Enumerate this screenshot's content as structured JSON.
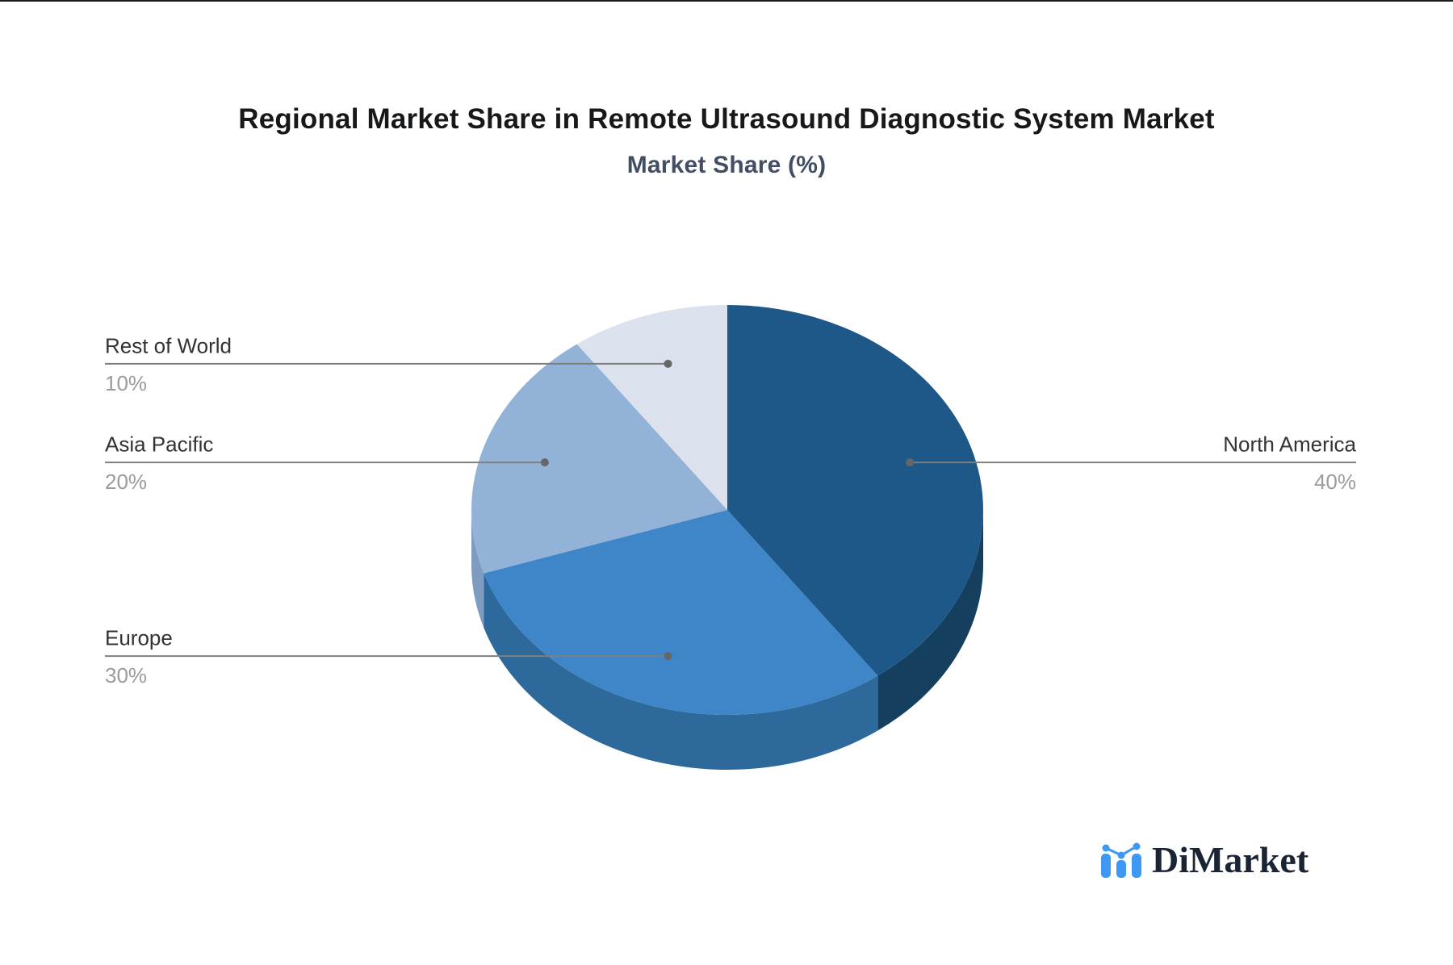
{
  "chart_data": {
    "type": "pie",
    "title": "Regional Market Share in Remote Ultrasound Diagnostic System Market",
    "subtitle": "Market Share (%)",
    "unit": "%",
    "direction": "clockwise",
    "start_angle_deg": 0,
    "three_d": true,
    "legend_position": "none",
    "slices": [
      {
        "name": "North America",
        "value": 40,
        "label": "40%",
        "color": "#1d5888",
        "side_color": "#153f5f",
        "label_side": "right"
      },
      {
        "name": "Europe",
        "value": 30,
        "label": "30%",
        "color": "#3e86c8",
        "side_color": "#2e699c",
        "label_side": "left"
      },
      {
        "name": "Asia Pacific",
        "value": 20,
        "label": "20%",
        "color": "#93b2d7",
        "side_color": "#7e9cc0",
        "label_side": "left"
      },
      {
        "name": "Rest of World",
        "value": 10,
        "label": "10%",
        "color": "#dbe2ee",
        "side_color": "#b9c3d6",
        "label_side": "left"
      }
    ],
    "label_text_color": "#333333",
    "value_text_color": "#9b9b9b",
    "leader_line_color": "#7f7f7f",
    "leader_dot_color": "#666666"
  },
  "logo": {
    "text": "DiMarket",
    "icon": "bar-line-chart-icon",
    "icon_color": "#3d97f3",
    "text_color": "#1a2433"
  }
}
